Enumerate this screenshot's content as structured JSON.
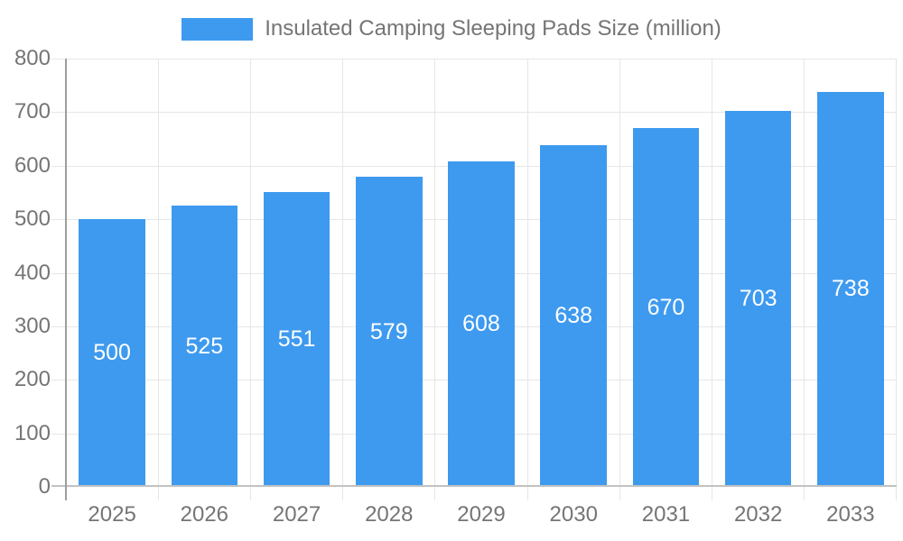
{
  "legend": {
    "label": "Insulated Camping Sleeping Pads Size (million)"
  },
  "chart_data": {
    "type": "bar",
    "title": "Insulated Camping Sleeping Pads Size (million)",
    "categories": [
      "2025",
      "2026",
      "2027",
      "2028",
      "2029",
      "2030",
      "2031",
      "2032",
      "2033"
    ],
    "values": [
      500,
      525,
      551,
      579,
      608,
      638,
      670,
      703,
      738
    ],
    "series_name": "Insulated Camping Sleeping Pads Size (million)",
    "xlabel": "",
    "ylabel": "",
    "ylim": [
      0,
      800
    ],
    "y_ticks": [
      0,
      100,
      200,
      300,
      400,
      500,
      600,
      700,
      800
    ],
    "grid": true,
    "legend_position": "top",
    "bar_labels": "inside-center",
    "colors": {
      "bar": "#3E9AEF",
      "axis_text": "#757575",
      "bar_label_text": "#ffffff",
      "grid_line": "#e6e6e6",
      "axis_line": "#9e9e9e",
      "baseline": "#c2c2c2",
      "background": "#ffffff"
    }
  }
}
